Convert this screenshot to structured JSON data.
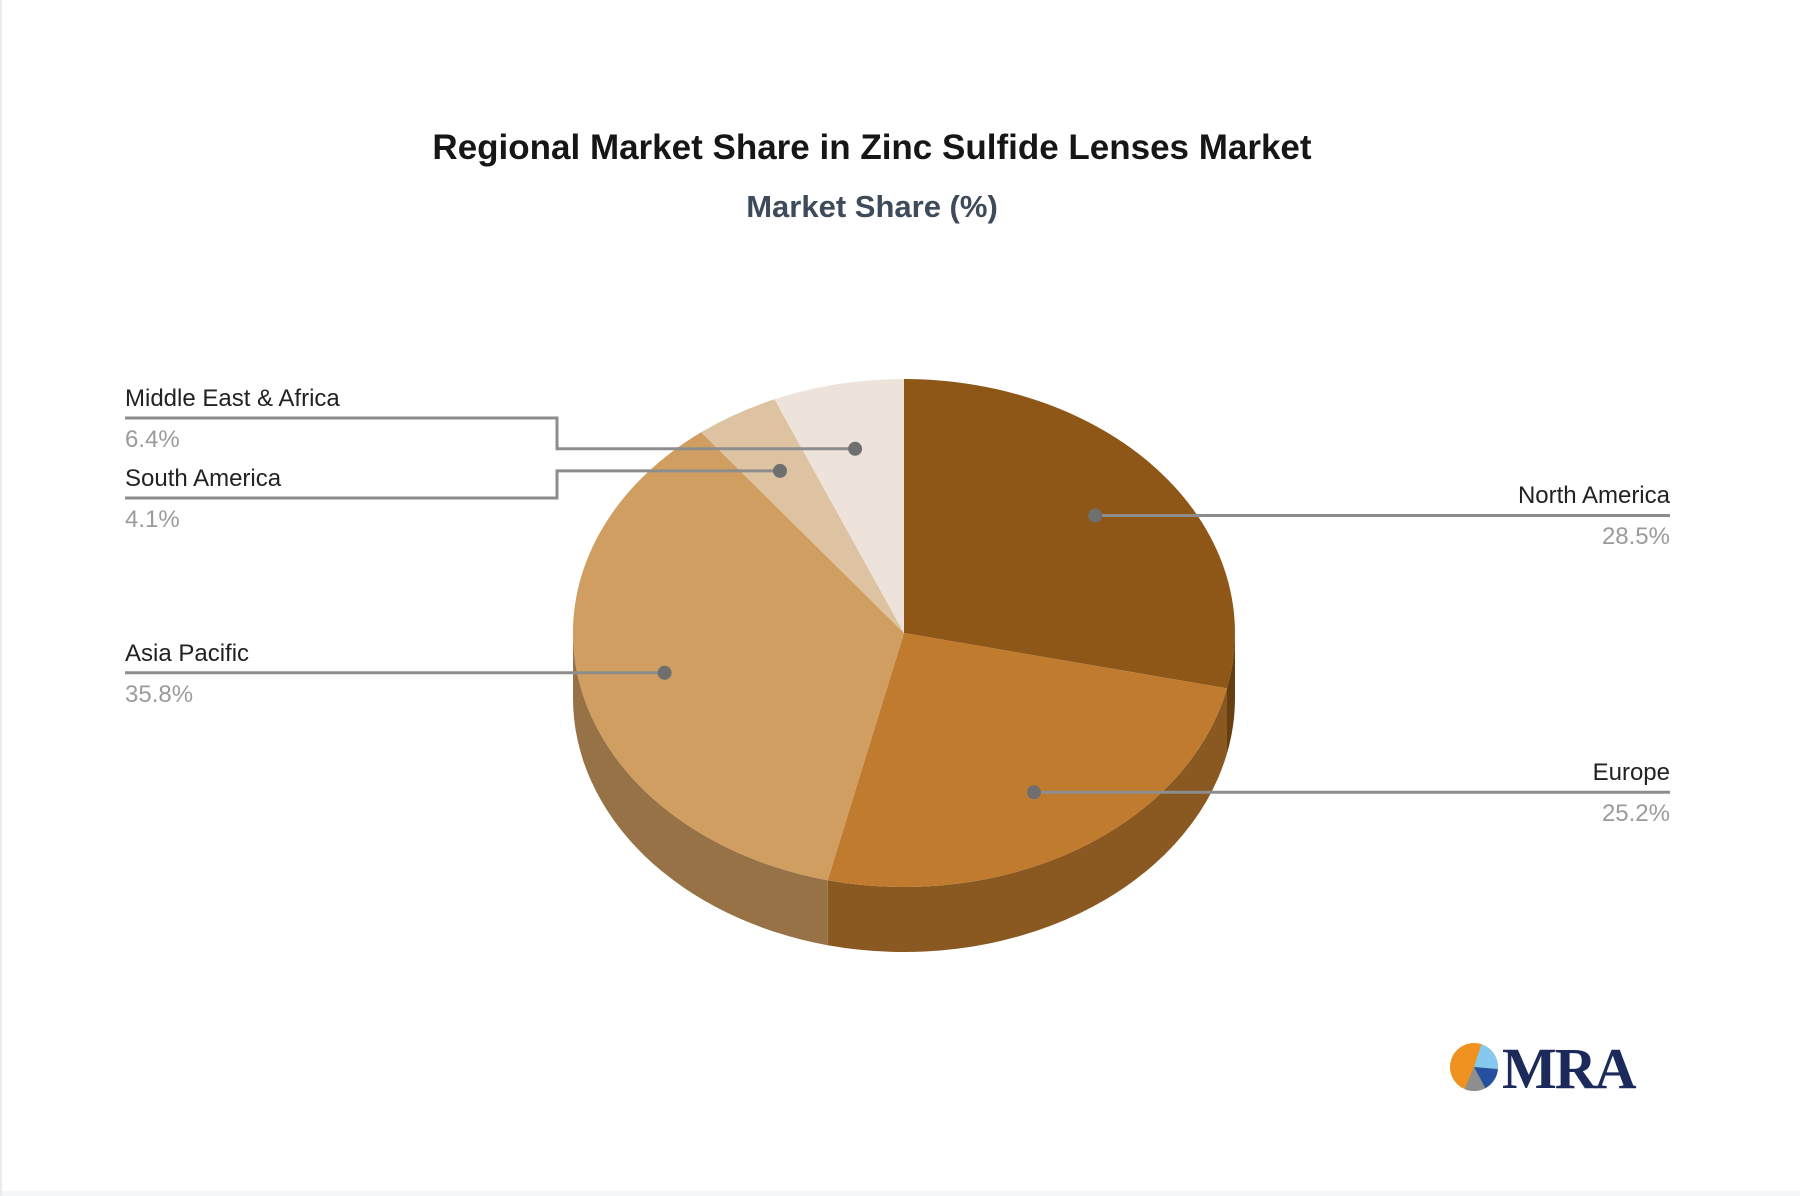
{
  "title": "Regional Market Share in Zinc Sulfide Lenses Market",
  "subtitle": "Market Share (%)",
  "logo": {
    "text": "MRA",
    "mark_colors": {
      "orange": "#F09220",
      "light_blue": "#85C9EF",
      "dark_blue": "#23509F",
      "gray": "#8E8E8E"
    },
    "text_color": "#1B2A5A"
  },
  "style_colors": {
    "title": "#161616",
    "subtitle": "#3E4B5A",
    "callout_label": "#222222",
    "callout_value": "#9B9B9B",
    "leader_line": "#8D8D8D",
    "leader_dot": "#6F6F6F"
  },
  "chart_data": {
    "type": "pie",
    "title": "Regional Market Share in Zinc Sulfide Lenses Market",
    "subtitle": "Market Share (%)",
    "unit": "%",
    "effect": "3d",
    "direction": "clockwise",
    "start_angle_deg": 0,
    "legend_position": "callout-labels",
    "categories": [
      "North America",
      "Europe",
      "Asia Pacific",
      "South America",
      "Middle East & Africa"
    ],
    "values": [
      28.5,
      25.2,
      35.8,
      4.1,
      6.4
    ],
    "slices": [
      {
        "label": "North America",
        "value": 28.5,
        "display": "28.5%",
        "color": "#8E5718",
        "callout_side": "right"
      },
      {
        "label": "Europe",
        "value": 25.2,
        "display": "25.2%",
        "color": "#C07B2E",
        "callout_side": "right"
      },
      {
        "label": "Asia Pacific",
        "value": 35.8,
        "display": "35.8%",
        "color": "#D09E61",
        "callout_side": "left"
      },
      {
        "label": "South America",
        "value": 4.1,
        "display": "4.1%",
        "color": "#DDC3A2",
        "callout_side": "left"
      },
      {
        "label": "Middle East & Africa",
        "value": 6.4,
        "display": "6.4%",
        "color": "#EDE3DB",
        "callout_side": "left"
      }
    ]
  }
}
